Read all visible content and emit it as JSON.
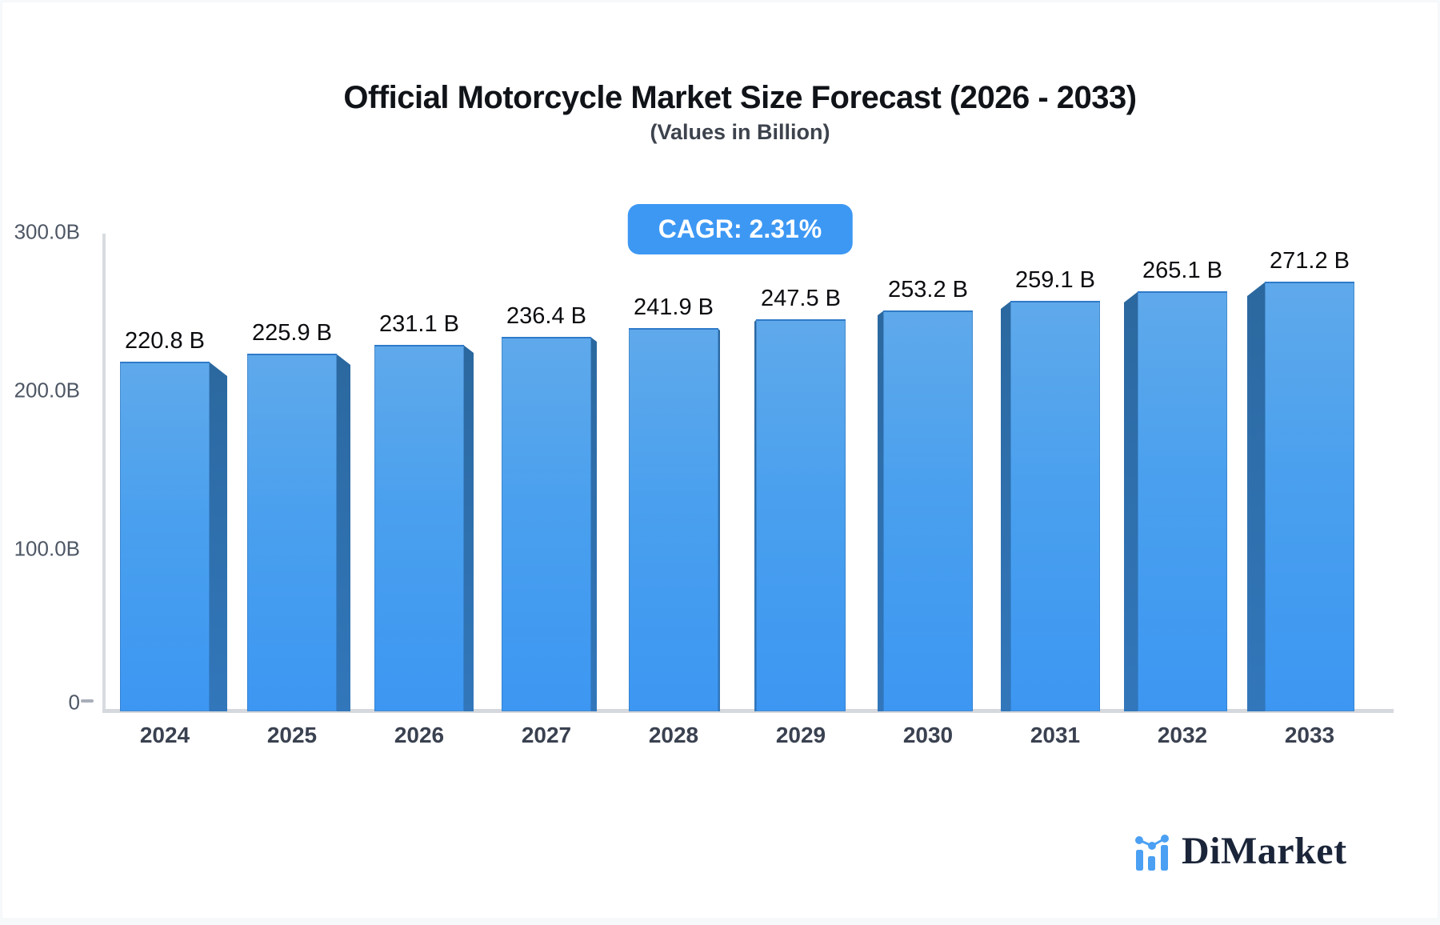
{
  "header": {
    "title": "Official Motorcycle Market Size Forecast (2026 - 2033)",
    "subtitle": "(Values in Billion)"
  },
  "badge": {
    "label": "CAGR: 2.31%"
  },
  "chart_data": {
    "type": "bar",
    "title": "Official Motorcycle Market Size Forecast (2026 - 2033)",
    "subtitle": "(Values in Billion)",
    "cagr": "2.31%",
    "categories": [
      "2024",
      "2025",
      "2026",
      "2027",
      "2028",
      "2029",
      "2030",
      "2031",
      "2032",
      "2033"
    ],
    "values": [
      220.8,
      225.9,
      231.1,
      236.4,
      241.9,
      247.5,
      253.2,
      259.1,
      265.1,
      271.2
    ],
    "value_labels": [
      "220.8 B",
      "225.9 B",
      "231.1 B",
      "236.4 B",
      "241.9 B",
      "247.5 B",
      "253.2 B",
      "259.1 B",
      "265.1 B",
      "271.2 B"
    ],
    "xlabel": "",
    "ylabel": "",
    "ylim": [
      0,
      300
    ],
    "yticks": [
      {
        "value": 300,
        "label": "300.0B"
      },
      {
        "value": 200,
        "label": "200.0B"
      },
      {
        "value": 100,
        "label": "100.0B"
      },
      {
        "value": 0,
        "label": "0"
      }
    ],
    "grid": false,
    "legend": false,
    "bar_style": "3d-perspective",
    "colors": {
      "bar_top": "#5FA9EB",
      "bar_bottom": "#3D97F2",
      "bar_side": "#2F6FB0",
      "badge_bg": "#3D98F4",
      "axis": "#D8DBE0",
      "baseline": "#D5D8DC"
    }
  },
  "logo": {
    "icon": "bar-chart-trend-icon",
    "text": "DiMarket"
  }
}
